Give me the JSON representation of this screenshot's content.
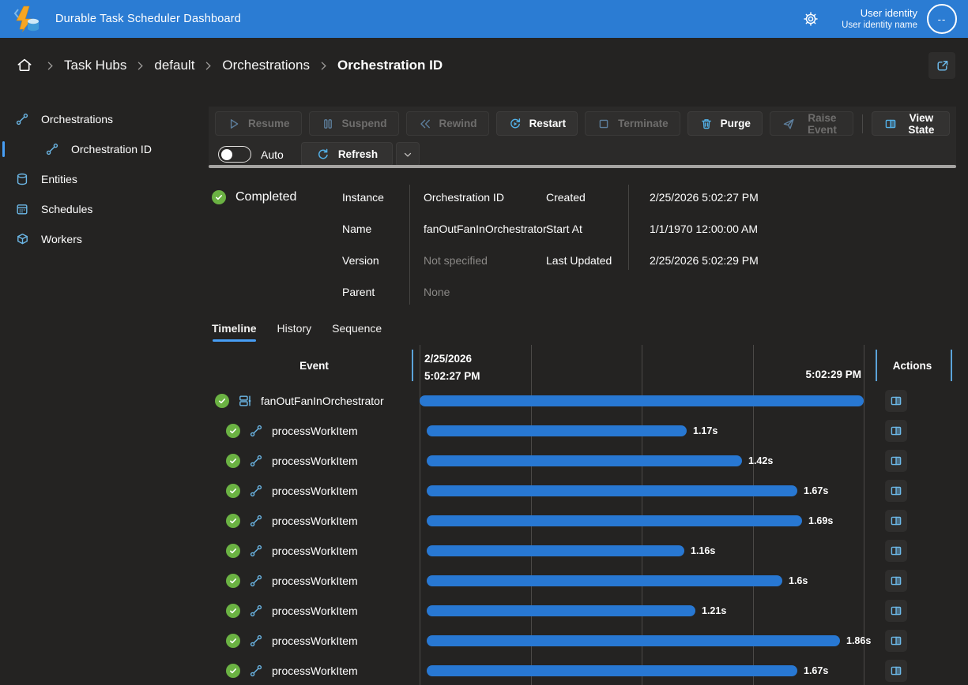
{
  "colors": {
    "accent_blue": "#2b7cd3",
    "bar_blue": "#2878d3",
    "icon_blue": "#6cb8e8",
    "success_green": "#6bb243"
  },
  "topbar": {
    "title": "Durable Task Scheduler Dashboard",
    "user_name": "User identity",
    "user_subtitle": "User identity name",
    "avatar_text": "--"
  },
  "breadcrumb": {
    "items": [
      "Task Hubs",
      "default",
      "Orchestrations"
    ],
    "current": "Orchestration ID"
  },
  "sidebar": {
    "items": [
      {
        "label": "Orchestrations",
        "icon": "link",
        "selected": false,
        "child": false
      },
      {
        "label": "Orchestration ID",
        "icon": "link",
        "selected": true,
        "child": true
      },
      {
        "label": "Entities",
        "icon": "database",
        "selected": false,
        "child": false
      },
      {
        "label": "Schedules",
        "icon": "calendar",
        "selected": false,
        "child": false
      },
      {
        "label": "Workers",
        "icon": "cube",
        "selected": false,
        "child": false
      }
    ]
  },
  "toolbar": {
    "buttons": [
      {
        "label": "Resume",
        "icon": "play",
        "enabled": false,
        "divider_before": false
      },
      {
        "label": "Suspend",
        "icon": "pause",
        "enabled": false,
        "divider_before": false
      },
      {
        "label": "Rewind",
        "icon": "rewind",
        "enabled": false,
        "divider_before": false
      },
      {
        "label": "Restart",
        "icon": "restart",
        "enabled": true,
        "divider_before": false
      },
      {
        "label": "Terminate",
        "icon": "stop",
        "enabled": false,
        "divider_before": false
      },
      {
        "label": "Purge",
        "icon": "trash",
        "enabled": true,
        "divider_before": false
      },
      {
        "label": "Raise Event",
        "icon": "send",
        "enabled": false,
        "divider_before": false
      },
      {
        "label": "View State",
        "icon": "panel",
        "enabled": true,
        "divider_before": true
      }
    ],
    "auto_label": "Auto",
    "auto_on": false,
    "refresh_label": "Refresh"
  },
  "status": {
    "badge": "Completed",
    "fields_left": [
      {
        "label": "Instance",
        "value": "Orchestration ID",
        "muted": false
      },
      {
        "label": "Name",
        "value": "fanOutFanInOrchestrator",
        "muted": false
      },
      {
        "label": "Version",
        "value": "Not specified",
        "muted": true
      },
      {
        "label": "Parent",
        "value": "None",
        "muted": true
      }
    ],
    "fields_right": [
      {
        "label": "Created",
        "value": "2/25/2026 5:02:27 PM"
      },
      {
        "label": "Start At",
        "value": "1/1/1970 12:00:00 AM"
      },
      {
        "label": "Last Updated",
        "value": "2/25/2026 5:02:29 PM"
      }
    ]
  },
  "tabs": {
    "items": [
      "Timeline",
      "History",
      "Sequence"
    ],
    "active": "Timeline"
  },
  "timeline": {
    "event_header": "Event",
    "actions_header": "Actions",
    "axis": {
      "start_date": "2/25/2026",
      "start_time": "5:02:27 PM",
      "end_time": "5:02:29 PM",
      "total_seconds": 2.0,
      "gridline_interval_seconds": 0.5
    },
    "rows": [
      {
        "name": "fanOutFanInOrchestrator",
        "icon": "orchestrator",
        "status": "completed",
        "is_root": true,
        "start_offset_s": 0,
        "duration_s": 2.0,
        "duration_label": ""
      },
      {
        "name": "processWorkItem",
        "icon": "link",
        "status": "completed",
        "is_root": false,
        "start_offset_s": 0.032,
        "duration_s": 1.17,
        "duration_label": "1.17s"
      },
      {
        "name": "processWorkItem",
        "icon": "link",
        "status": "completed",
        "is_root": false,
        "start_offset_s": 0.032,
        "duration_s": 1.42,
        "duration_label": "1.42s"
      },
      {
        "name": "processWorkItem",
        "icon": "link",
        "status": "completed",
        "is_root": false,
        "start_offset_s": 0.032,
        "duration_s": 1.67,
        "duration_label": "1.67s"
      },
      {
        "name": "processWorkItem",
        "icon": "link",
        "status": "completed",
        "is_root": false,
        "start_offset_s": 0.032,
        "duration_s": 1.69,
        "duration_label": "1.69s"
      },
      {
        "name": "processWorkItem",
        "icon": "link",
        "status": "completed",
        "is_root": false,
        "start_offset_s": 0.032,
        "duration_s": 1.16,
        "duration_label": "1.16s"
      },
      {
        "name": "processWorkItem",
        "icon": "link",
        "status": "completed",
        "is_root": false,
        "start_offset_s": 0.032,
        "duration_s": 1.6,
        "duration_label": "1.6s"
      },
      {
        "name": "processWorkItem",
        "icon": "link",
        "status": "completed",
        "is_root": false,
        "start_offset_s": 0.032,
        "duration_s": 1.21,
        "duration_label": "1.21s"
      },
      {
        "name": "processWorkItem",
        "icon": "link",
        "status": "completed",
        "is_root": false,
        "start_offset_s": 0.032,
        "duration_s": 1.86,
        "duration_label": "1.86s"
      },
      {
        "name": "processWorkItem",
        "icon": "link",
        "status": "completed",
        "is_root": false,
        "start_offset_s": 0.032,
        "duration_s": 1.67,
        "duration_label": "1.67s"
      }
    ]
  }
}
